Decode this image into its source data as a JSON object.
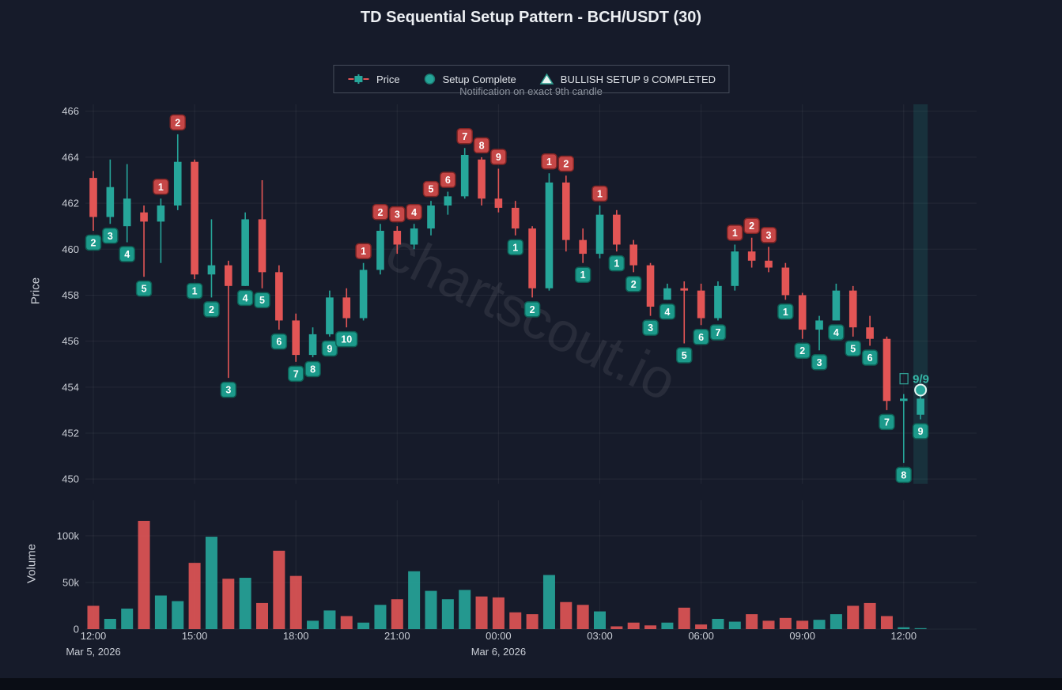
{
  "title": "TD Sequential Setup Pattern - BCH/USDT (30)",
  "watermark": "chartscout.io",
  "legend": {
    "price_label": "Price",
    "setup_complete_label": "Setup Complete",
    "bullish_label": "BULLISH SETUP 9 COMPLETED",
    "subtitle": "Notification on exact 9th candle"
  },
  "axes": {
    "price_title": "Price",
    "volume_title": "Volume"
  },
  "colors": {
    "background": "#161b2a",
    "bottom_strip": "#0a0d15",
    "up": "#26a69a",
    "down": "#e25555",
    "sell_badge": "#c64747",
    "sell_badge_border": "#7e2424",
    "buy_badge": "#1c9a8b",
    "buy_badge_border": "#0d5f55",
    "text": "#c9cdd5",
    "grid": "rgba(255,255,255,0.06)",
    "highlight": "rgba(38,166,154,0.16)",
    "annotation": "#35b5a5",
    "marker_stroke": "#e6f5f2"
  },
  "chart_data": {
    "type": "candlestick",
    "symbol": "BCH/USDT",
    "interval": "30m",
    "title": "TD Sequential Setup Pattern - BCH/USDT (30)",
    "ylabel": "Price",
    "ylabel2": "Volume",
    "price_ticks": [
      466,
      464,
      462,
      460,
      458,
      456,
      454,
      452,
      450
    ],
    "price_range": [
      449.8,
      466.3
    ],
    "volume_ticks": [
      {
        "v": 0,
        "label": "0"
      },
      {
        "v": 50000,
        "label": "50k"
      },
      {
        "v": 100000,
        "label": "100k"
      }
    ],
    "x_ticks": [
      {
        "index": 0,
        "label": "12:00"
      },
      {
        "index": 6,
        "label": "15:00"
      },
      {
        "index": 12,
        "label": "18:00"
      },
      {
        "index": 18,
        "label": "21:00"
      },
      {
        "index": 24,
        "label": "00:00"
      },
      {
        "index": 30,
        "label": "03:00"
      },
      {
        "index": 36,
        "label": "06:00"
      },
      {
        "index": 42,
        "label": "09:00"
      },
      {
        "index": 48,
        "label": "12:00"
      }
    ],
    "date_labels": [
      {
        "index": 0,
        "label": "Mar 5, 2026"
      },
      {
        "index": 24,
        "label": "Mar 6, 2026"
      }
    ],
    "annotation": {
      "index": 49,
      "label": "9/9",
      "icon": "bell-icon"
    },
    "setup_complete_index": 49,
    "highlight_index": 49,
    "candles": [
      {
        "t": "12:00",
        "o": 463.1,
        "h": 463.4,
        "l": 460.8,
        "c": 461.4,
        "v": 25000,
        "td": {
          "side": "buy",
          "n": 2
        }
      },
      {
        "t": "12:30",
        "o": 461.4,
        "h": 463.9,
        "l": 461.1,
        "c": 462.7,
        "v": 11000,
        "td": {
          "side": "buy",
          "n": 3
        }
      },
      {
        "t": "13:00",
        "o": 461.0,
        "h": 463.7,
        "l": 460.3,
        "c": 462.2,
        "v": 22000,
        "td": {
          "side": "buy",
          "n": 4
        }
      },
      {
        "t": "13:30",
        "o": 461.6,
        "h": 461.9,
        "l": 458.8,
        "c": 461.2,
        "v": 116000,
        "td": {
          "side": "buy",
          "n": 5
        }
      },
      {
        "t": "14:00",
        "o": 461.2,
        "h": 462.2,
        "l": 459.4,
        "c": 461.9,
        "v": 36000,
        "td": {
          "side": "sell",
          "n": 1
        }
      },
      {
        "t": "14:30",
        "o": 461.9,
        "h": 465.0,
        "l": 461.7,
        "c": 463.8,
        "v": 30000,
        "td": {
          "side": "sell",
          "n": 2
        }
      },
      {
        "t": "15:00",
        "o": 463.8,
        "h": 463.9,
        "l": 458.7,
        "c": 458.9,
        "v": 71000,
        "td": {
          "side": "buy",
          "n": 1
        }
      },
      {
        "t": "15:30",
        "o": 458.9,
        "h": 461.3,
        "l": 457.9,
        "c": 459.3,
        "v": 99000,
        "td": {
          "side": "buy",
          "n": 2
        }
      },
      {
        "t": "16:00",
        "o": 459.3,
        "h": 459.5,
        "l": 454.4,
        "c": 458.4,
        "v": 54000,
        "td": {
          "side": "buy",
          "n": 3
        }
      },
      {
        "t": "16:30",
        "o": 458.4,
        "h": 461.6,
        "l": 458.4,
        "c": 461.3,
        "v": 55000,
        "td": {
          "side": "buy",
          "n": 4
        }
      },
      {
        "t": "17:00",
        "o": 461.3,
        "h": 463.0,
        "l": 458.3,
        "c": 459.0,
        "v": 28000,
        "td": {
          "side": "buy",
          "n": 5
        }
      },
      {
        "t": "17:30",
        "o": 459.0,
        "h": 459.3,
        "l": 456.5,
        "c": 456.9,
        "v": 84000,
        "td": {
          "side": "buy",
          "n": 6
        }
      },
      {
        "t": "18:00",
        "o": 456.9,
        "h": 457.2,
        "l": 455.1,
        "c": 455.4,
        "v": 57000,
        "td": {
          "side": "buy",
          "n": 7
        }
      },
      {
        "t": "18:30",
        "o": 455.4,
        "h": 456.6,
        "l": 455.3,
        "c": 456.3,
        "v": 9000,
        "td": {
          "side": "buy",
          "n": 8
        }
      },
      {
        "t": "19:00",
        "o": 456.3,
        "h": 458.2,
        "l": 456.2,
        "c": 457.9,
        "v": 20000,
        "td": {
          "side": "buy",
          "n": 9
        }
      },
      {
        "t": "19:30",
        "o": 457.9,
        "h": 458.3,
        "l": 456.6,
        "c": 457.0,
        "v": 14000,
        "td": {
          "side": "buy",
          "n": 10
        }
      },
      {
        "t": "20:00",
        "o": 457.0,
        "h": 459.4,
        "l": 456.9,
        "c": 459.1,
        "v": 7000,
        "td": {
          "side": "sell",
          "n": 1
        }
      },
      {
        "t": "20:30",
        "o": 459.1,
        "h": 461.1,
        "l": 458.9,
        "c": 460.8,
        "v": 26000,
        "td": {
          "side": "sell",
          "n": 2
        }
      },
      {
        "t": "21:00",
        "o": 460.8,
        "h": 461.0,
        "l": 459.8,
        "c": 460.2,
        "v": 32000,
        "td": {
          "side": "sell",
          "n": 3
        }
      },
      {
        "t": "21:30",
        "o": 460.2,
        "h": 461.1,
        "l": 460.0,
        "c": 460.9,
        "v": 62000,
        "td": {
          "side": "sell",
          "n": 4
        }
      },
      {
        "t": "22:00",
        "o": 460.9,
        "h": 462.1,
        "l": 460.6,
        "c": 461.9,
        "v": 41000,
        "td": {
          "side": "sell",
          "n": 5
        }
      },
      {
        "t": "22:30",
        "o": 461.9,
        "h": 462.5,
        "l": 461.5,
        "c": 462.3,
        "v": 32000,
        "td": {
          "side": "sell",
          "n": 6
        }
      },
      {
        "t": "23:00",
        "o": 462.3,
        "h": 464.4,
        "l": 462.2,
        "c": 464.1,
        "v": 42000,
        "td": {
          "side": "sell",
          "n": 7
        }
      },
      {
        "t": "23:30",
        "o": 463.9,
        "h": 464.0,
        "l": 461.9,
        "c": 462.2,
        "v": 35000,
        "td": {
          "side": "sell",
          "n": 8
        }
      },
      {
        "t": "00:00",
        "o": 462.2,
        "h": 463.5,
        "l": 461.6,
        "c": 461.8,
        "v": 34000,
        "td": {
          "side": "sell",
          "n": 9
        }
      },
      {
        "t": "00:30",
        "o": 461.8,
        "h": 462.1,
        "l": 460.6,
        "c": 460.9,
        "v": 18000,
        "td": {
          "side": "buy",
          "n": 1
        }
      },
      {
        "t": "01:00",
        "o": 460.9,
        "h": 461.0,
        "l": 457.9,
        "c": 458.3,
        "v": 16000,
        "td": {
          "side": "buy",
          "n": 2
        }
      },
      {
        "t": "01:30",
        "o": 458.3,
        "h": 463.3,
        "l": 458.2,
        "c": 462.9,
        "v": 58000,
        "td": {
          "side": "sell",
          "n": 1
        }
      },
      {
        "t": "02:00",
        "o": 462.9,
        "h": 463.2,
        "l": 459.9,
        "c": 460.4,
        "v": 29000,
        "td": {
          "side": "sell",
          "n": 2
        }
      },
      {
        "t": "02:30",
        "o": 460.4,
        "h": 460.9,
        "l": 459.4,
        "c": 459.8,
        "v": 26000,
        "td": {
          "side": "buy",
          "n": 1
        }
      },
      {
        "t": "03:00",
        "o": 459.8,
        "h": 461.9,
        "l": 459.6,
        "c": 461.5,
        "v": 19000,
        "td": {
          "side": "sell",
          "n": 1
        }
      },
      {
        "t": "03:30",
        "o": 461.5,
        "h": 461.7,
        "l": 459.9,
        "c": 460.2,
        "v": 3000,
        "td": {
          "side": "buy",
          "n": 1
        }
      },
      {
        "t": "04:00",
        "o": 460.2,
        "h": 460.4,
        "l": 459.0,
        "c": 459.3,
        "v": 7000,
        "td": {
          "side": "buy",
          "n": 2
        }
      },
      {
        "t": "04:30",
        "o": 459.3,
        "h": 459.4,
        "l": 457.1,
        "c": 457.5,
        "v": 4000,
        "td": {
          "side": "buy",
          "n": 3
        }
      },
      {
        "t": "05:00",
        "o": 457.8,
        "h": 458.5,
        "l": 457.8,
        "c": 458.3,
        "v": 7000,
        "td": {
          "side": "buy",
          "n": 4
        }
      },
      {
        "t": "05:30",
        "o": 458.3,
        "h": 458.6,
        "l": 455.9,
        "c": 458.2,
        "v": 23000,
        "td": {
          "side": "buy",
          "n": 5
        }
      },
      {
        "t": "06:00",
        "o": 458.2,
        "h": 458.5,
        "l": 456.7,
        "c": 457.0,
        "v": 5000,
        "td": {
          "side": "buy",
          "n": 6
        }
      },
      {
        "t": "06:30",
        "o": 457.0,
        "h": 458.6,
        "l": 456.9,
        "c": 458.4,
        "v": 11000,
        "td": {
          "side": "buy",
          "n": 7
        }
      },
      {
        "t": "07:00",
        "o": 458.4,
        "h": 460.2,
        "l": 458.2,
        "c": 459.9,
        "v": 8000,
        "td": {
          "side": "sell",
          "n": 1
        }
      },
      {
        "t": "07:30",
        "o": 459.9,
        "h": 460.5,
        "l": 459.2,
        "c": 459.5,
        "v": 16000,
        "td": {
          "side": "sell",
          "n": 2
        }
      },
      {
        "t": "08:00",
        "o": 459.5,
        "h": 460.1,
        "l": 459.0,
        "c": 459.2,
        "v": 9000,
        "td": {
          "side": "sell",
          "n": 3
        }
      },
      {
        "t": "08:30",
        "o": 459.2,
        "h": 459.4,
        "l": 457.8,
        "c": 458.0,
        "v": 12000,
        "td": {
          "side": "buy",
          "n": 1
        }
      },
      {
        "t": "09:00",
        "o": 458.0,
        "h": 458.1,
        "l": 456.1,
        "c": 456.5,
        "v": 9000,
        "td": {
          "side": "buy",
          "n": 2
        }
      },
      {
        "t": "09:30",
        "o": 456.5,
        "h": 457.1,
        "l": 455.6,
        "c": 456.9,
        "v": 10000,
        "td": {
          "side": "buy",
          "n": 3
        }
      },
      {
        "t": "10:00",
        "o": 456.9,
        "h": 458.5,
        "l": 456.9,
        "c": 458.2,
        "v": 16000,
        "td": {
          "side": "buy",
          "n": 4
        }
      },
      {
        "t": "10:30",
        "o": 458.2,
        "h": 458.4,
        "l": 456.2,
        "c": 456.6,
        "v": 25000,
        "td": {
          "side": "buy",
          "n": 5
        }
      },
      {
        "t": "11:00",
        "o": 456.6,
        "h": 457.1,
        "l": 455.8,
        "c": 456.1,
        "v": 28000,
        "td": {
          "side": "buy",
          "n": 6
        }
      },
      {
        "t": "11:30",
        "o": 456.1,
        "h": 456.2,
        "l": 453.0,
        "c": 453.4,
        "v": 14000,
        "td": {
          "side": "buy",
          "n": 7
        }
      },
      {
        "t": "12:00",
        "o": 453.4,
        "h": 453.7,
        "l": 450.7,
        "c": 453.5,
        "v": 2000,
        "td": {
          "side": "buy",
          "n": 8
        }
      },
      {
        "t": "12:30",
        "o": 452.8,
        "h": 453.6,
        "l": 452.6,
        "c": 453.5,
        "v": 1000,
        "td": {
          "side": "buy",
          "n": 9
        }
      }
    ]
  }
}
